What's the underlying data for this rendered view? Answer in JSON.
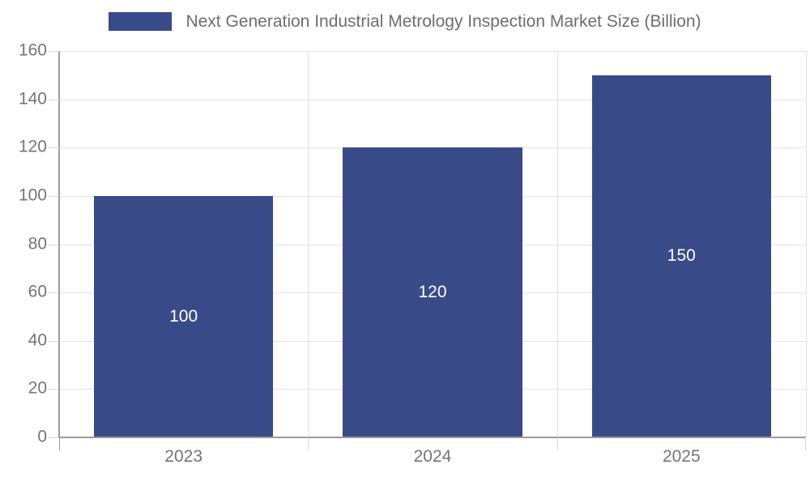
{
  "chart_data": {
    "type": "bar",
    "title": "",
    "series_name": "Next Generation Industrial Metrology Inspection Market Size (Billion)",
    "categories": [
      "2023",
      "2024",
      "2025"
    ],
    "values": [
      100,
      120,
      150
    ],
    "bar_labels": [
      "100",
      "120",
      "150"
    ],
    "xlabel": "",
    "ylabel": "",
    "ylim": [
      0,
      160
    ],
    "yticks": [
      0,
      20,
      40,
      60,
      80,
      100,
      120,
      140,
      160
    ],
    "grid": true,
    "legend_position": "top-center",
    "bar_width_fraction": 0.72,
    "colors": {
      "bar": "#394A88",
      "bar_label_text": "#FFFFFF",
      "tick_text": "#757575",
      "legend_text": "#6E6E6E",
      "gridline": "#E2E2E2",
      "axis_line": "#9B9B9B",
      "tick_mark": "#D8D8D8",
      "background": "#FFFFFF"
    }
  }
}
